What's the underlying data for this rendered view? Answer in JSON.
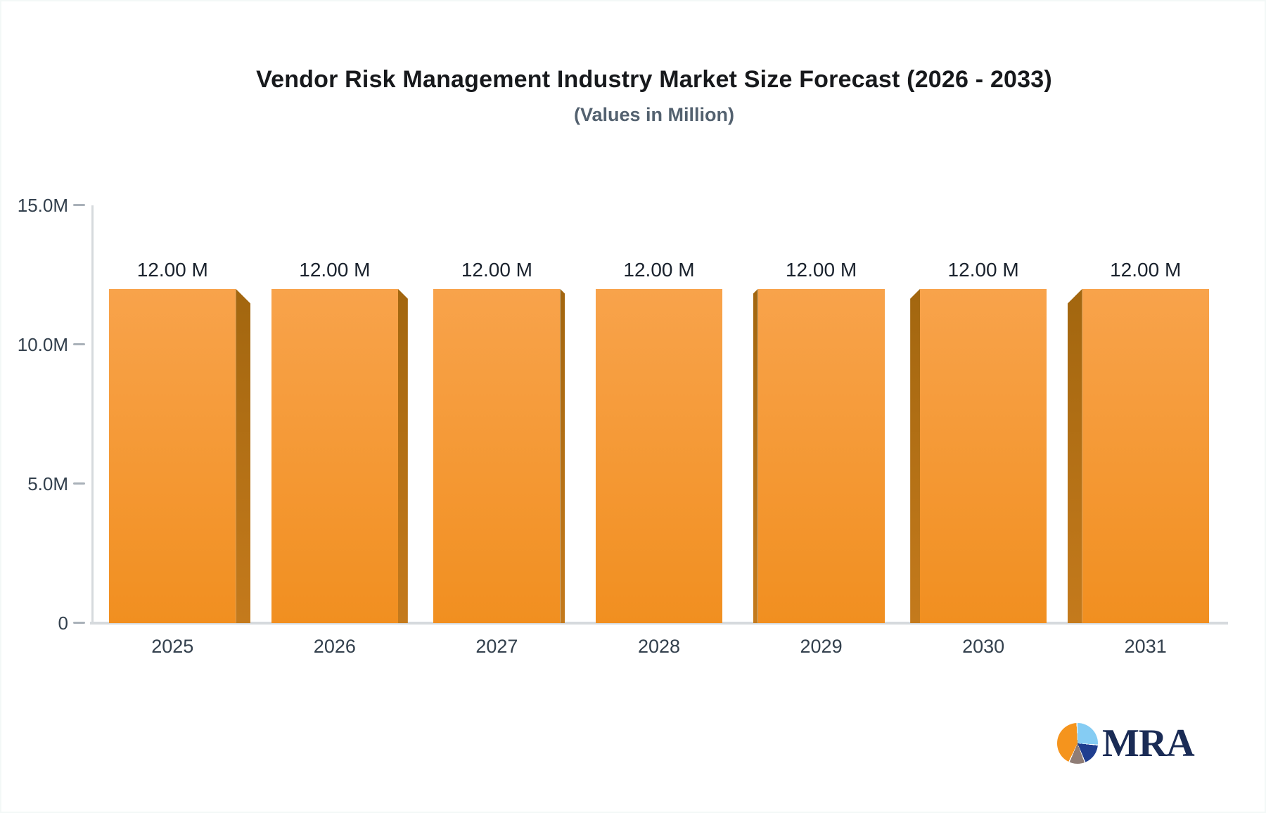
{
  "header": {
    "title": "Vendor Risk Management Industry Market Size Forecast (2026 - 2033)",
    "subtitle": "(Values in Million)"
  },
  "chart_data": {
    "type": "bar",
    "title": "Vendor Risk Management Industry Market Size Forecast (2026 - 2033)",
    "subtitle": "(Values in Million)",
    "categories": [
      "2025",
      "2026",
      "2027",
      "2028",
      "2029",
      "2030",
      "2031"
    ],
    "values": [
      12,
      12,
      12,
      12,
      12,
      12,
      12
    ],
    "bar_labels": [
      "12.00 M",
      "12.00 M",
      "12.00 M",
      "12.00 M",
      "12.00 M",
      "12.00 M",
      "12.00 M"
    ],
    "unit": "Million",
    "xlabel": "",
    "ylabel": "",
    "ylim": [
      0,
      15
    ],
    "yticks": [
      {
        "value": 0,
        "label": "0"
      },
      {
        "value": 5,
        "label": "5.0M"
      },
      {
        "value": 10,
        "label": "10.0M"
      },
      {
        "value": 15,
        "label": "15.0M"
      }
    ],
    "grid": false,
    "legend": false,
    "style": "3d-bars-center-perspective"
  },
  "colors": {
    "bar_front_top": "#F8A34B",
    "bar_front_bottom": "#F18F20",
    "bar_side_top": "#A2660F",
    "bar_side_bottom": "#C47A1C",
    "axis_line": "#D6DADD",
    "tick_dash": "#A9B1B9",
    "axis_label": "#33404D",
    "value_label": "#1A222D",
    "title": "#17191C",
    "subtitle": "#53616F",
    "logo_text": "#1A2B55",
    "logo_pie_orange": "#F5941D",
    "logo_pie_light_blue": "#85CCF3",
    "logo_pie_dark_blue": "#1F3E8F",
    "logo_pie_gray": "#8F7D76"
  },
  "logo": {
    "text": "MRA"
  }
}
